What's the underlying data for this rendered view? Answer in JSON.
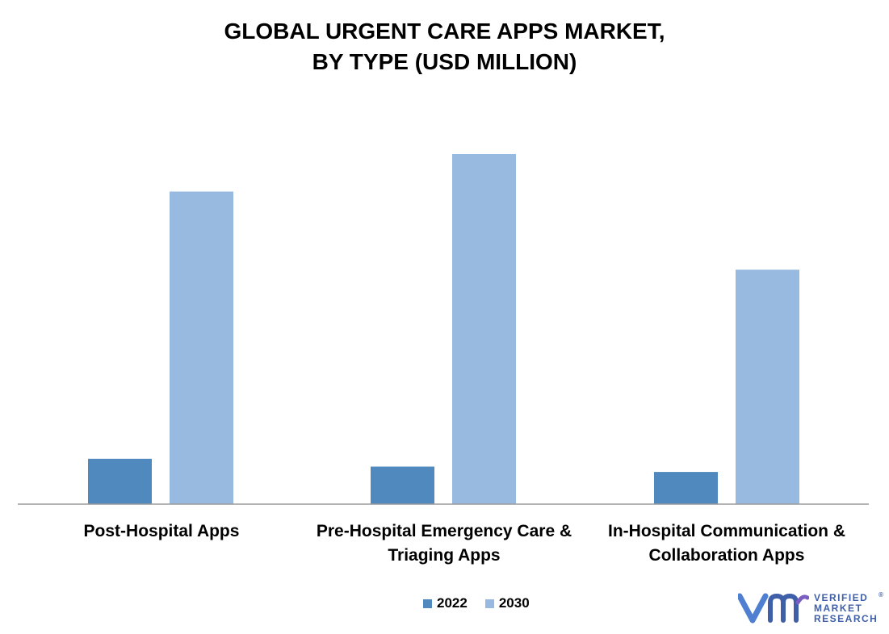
{
  "chart_data": {
    "type": "bar",
    "title_lines": [
      "GLOBAL URGENT CARE APPS MARKET,",
      "BY TYPE (USD MILLION)"
    ],
    "categories": [
      [
        "Post-Hospital Apps"
      ],
      [
        "Pre-Hospital Emergency Care &",
        "Triaging Apps"
      ],
      [
        "In-Hospital Communication &",
        "Collaboration Apps"
      ]
    ],
    "series": [
      {
        "name": "2022",
        "color": "#4f89bd",
        "values": [
          14.5,
          12,
          10.3
        ]
      },
      {
        "name": "2030",
        "color": "#98b9e0",
        "values": [
          100,
          112,
          75
        ]
      }
    ],
    "ylim": [
      0,
      120
    ],
    "grid": false,
    "legend": "bottom-center"
  },
  "logo": {
    "lines": [
      "VERIFIED",
      "MARKET",
      "RESEARCH"
    ],
    "mark": "®",
    "color": "#3f5fa8"
  }
}
